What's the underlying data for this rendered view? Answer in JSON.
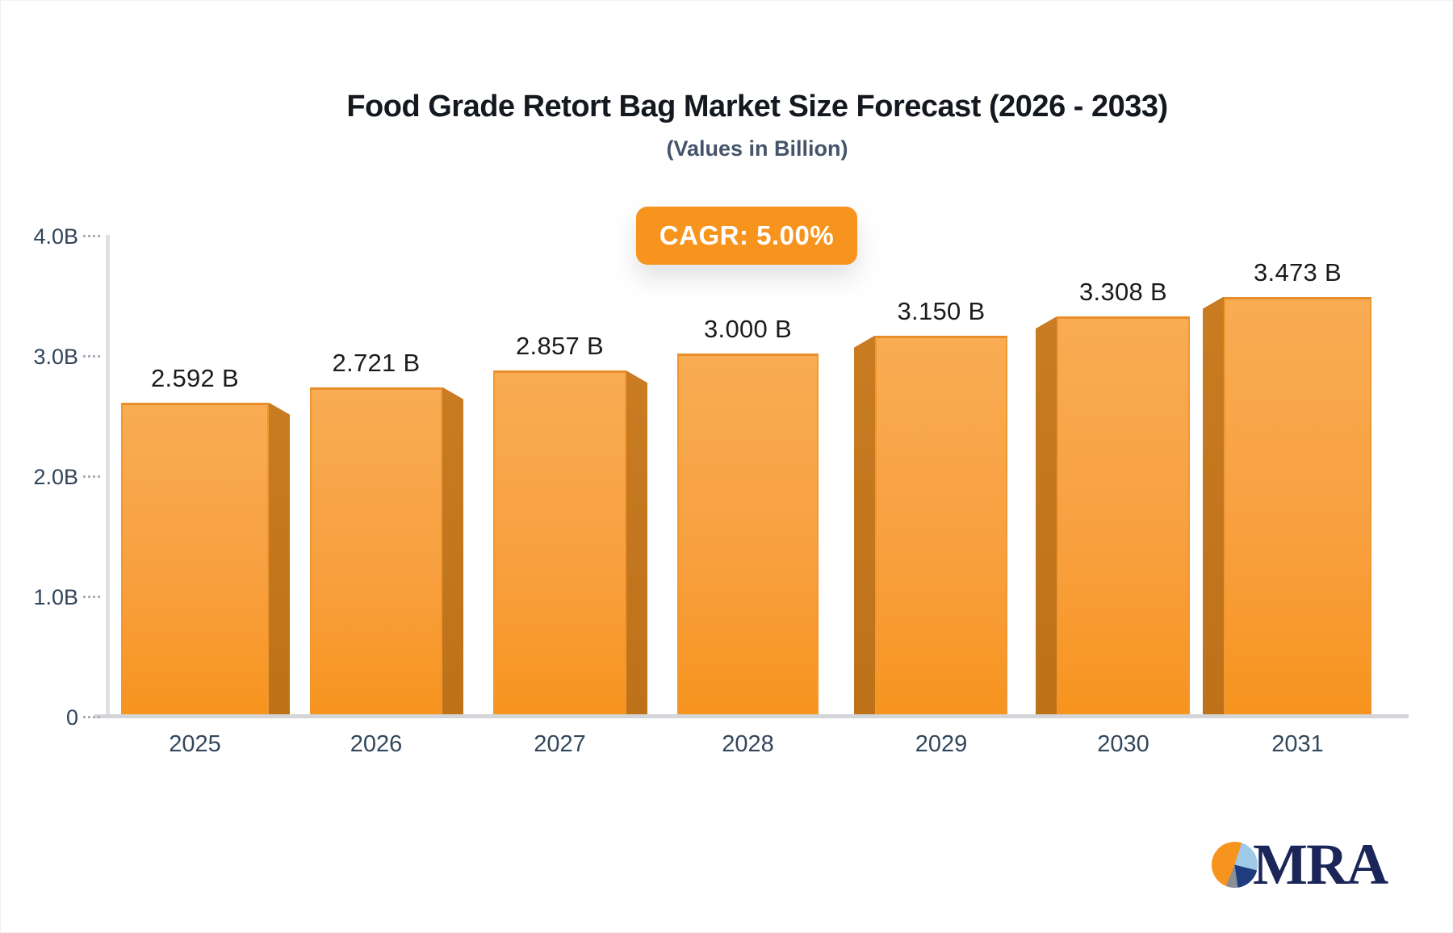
{
  "title": "Food Grade Retort Bag Market Size Forecast (2026 - 2033)",
  "subtitle": "(Values in Billion)",
  "badge": {
    "label": "CAGR: 5.00%"
  },
  "chart_data": {
    "type": "bar",
    "categories": [
      "2025",
      "2026",
      "2027",
      "2028",
      "2029",
      "2030",
      "2031"
    ],
    "values": [
      2.592,
      2.721,
      2.857,
      3.0,
      3.15,
      3.308,
      3.473
    ],
    "value_labels": [
      "2.592 B",
      "2.721 B",
      "2.857 B",
      "3.000 B",
      "3.150 B",
      "3.308 B",
      "3.473 B"
    ],
    "title": "Food Grade Retort Bag Market Size Forecast (2026 - 2033)",
    "subtitle": "(Values in Billion)",
    "xlabel": "",
    "ylabel": "",
    "ylim": [
      0,
      4.0
    ],
    "yticks": [
      {
        "label": "4.0B",
        "value": 4.0
      },
      {
        "label": "3.0B",
        "value": 3.0
      },
      {
        "label": "2.0B",
        "value": 2.0
      },
      {
        "label": "1.0B",
        "value": 1.0
      },
      {
        "label": "0",
        "value": 0.0
      }
    ],
    "grid": false,
    "legend": false,
    "annotation": "CAGR: 5.00%",
    "bar_color": "#F7941E",
    "bar_gradient_top": "#F9AC53",
    "bar_side_color": "#BD7119",
    "effect": "3d-perspective-toward-center"
  },
  "colors": {
    "accent_orange": "#F7941E",
    "title_text": "#14181F",
    "subtitle_text": "#44546A",
    "axis_text": "#31455B",
    "axis_line": "#DFE0E4",
    "baseline": "#D4D5D8",
    "badge_text": "#FFFFFF"
  },
  "logo": {
    "text": "MRA",
    "pie_slice_colors": [
      "#F7941E",
      "#9FCBE8",
      "#1E3C7E",
      "#8A8F98"
    ]
  }
}
